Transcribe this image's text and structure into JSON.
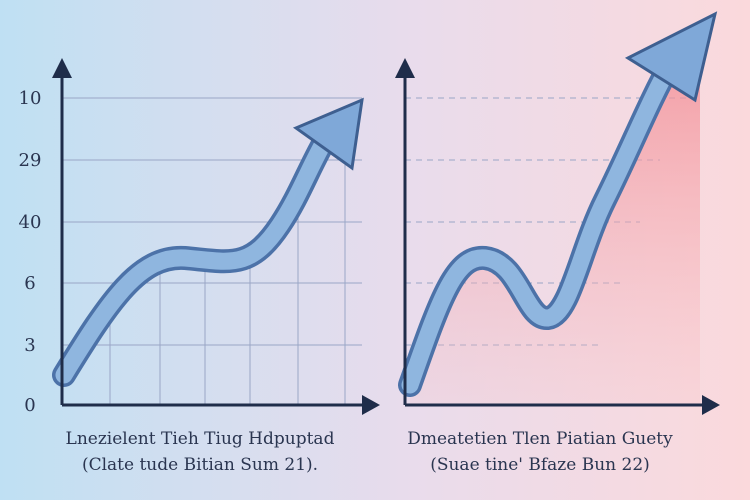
{
  "left_panel": {
    "y_labels": [
      "10",
      "29",
      "40",
      "6",
      "3",
      "0"
    ],
    "caption": [
      "Lnezielent Tieh Tiug Hdpuptad",
      "(Clate tude Bitian Sum 21)."
    ]
  },
  "right_panel": {
    "caption": [
      "Dmeatetien Tlen Piatian Guety",
      "(Suae tine' Bfaze Bun 22)"
    ]
  }
}
